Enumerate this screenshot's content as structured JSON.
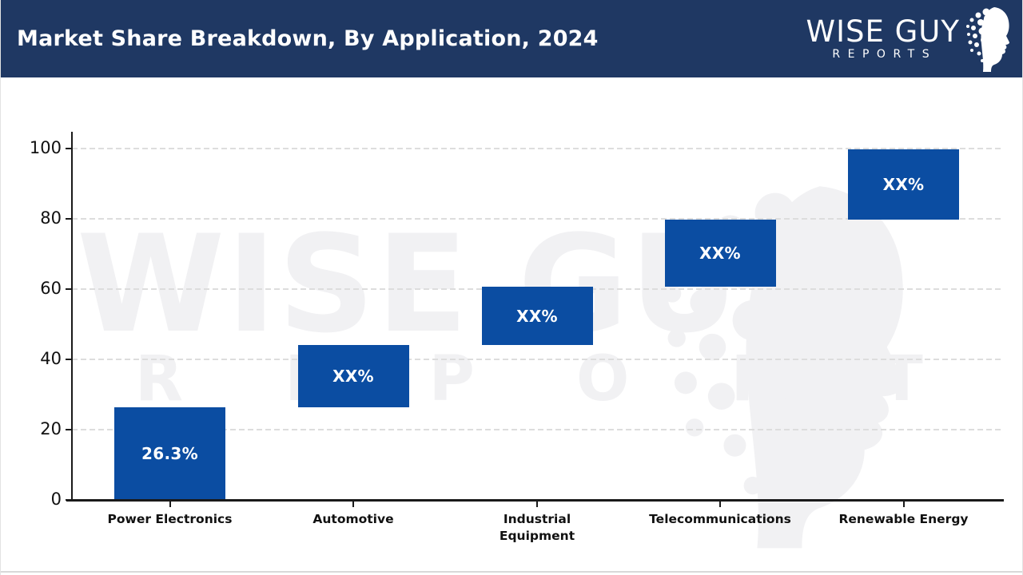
{
  "header": {
    "title": "Market Share Breakdown, By Application, 2024",
    "bg_color": "#1f3863",
    "logo": {
      "line1": "WISE GUY",
      "line2": "REPORTS"
    }
  },
  "watermark": {
    "line1": "WISE GUY",
    "line2": "R E P O R T S"
  },
  "chart_data": {
    "type": "bar",
    "variant": "waterfall",
    "title": "Market Share Breakdown, By Application, 2024",
    "categories": [
      "Power Electronics",
      "Automotive",
      "Industrial\nEquipment",
      "Telecommunications",
      "Renewable Energy"
    ],
    "series": [
      {
        "name": "Market Share (%)",
        "segments": [
          {
            "category": "Power Electronics",
            "start": 0,
            "end": 26.3,
            "label": "26.3%"
          },
          {
            "category": "Automotive",
            "start": 26.3,
            "end": 44.0,
            "label": "XX%"
          },
          {
            "category": "Industrial Equipment",
            "start": 44.0,
            "end": 60.7,
            "label": "XX%"
          },
          {
            "category": "Telecommunications",
            "start": 60.7,
            "end": 79.8,
            "label": "XX%"
          },
          {
            "category": "Renewable Energy",
            "start": 79.8,
            "end": 99.8,
            "label": "XX%"
          }
        ]
      }
    ],
    "ylim": [
      0,
      105
    ],
    "yticks": [
      0,
      20,
      40,
      60,
      80,
      100
    ],
    "grid": "horizontal-dashed",
    "legend": "none",
    "bar_color": "#0b4da2",
    "bar_label_color": "#ffffff"
  }
}
